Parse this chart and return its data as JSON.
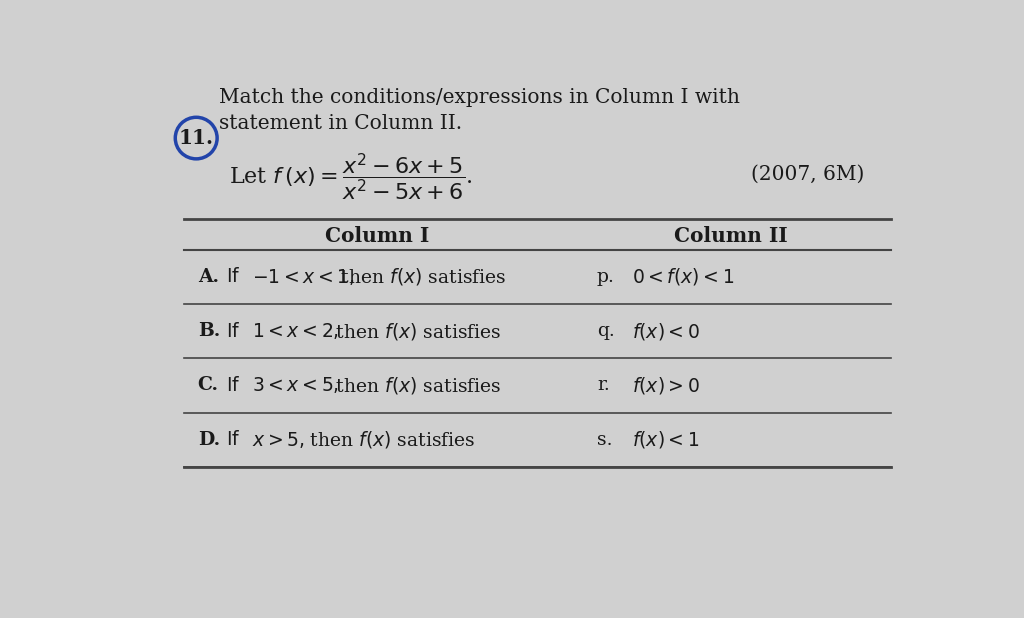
{
  "bg_color": "#d0d0d0",
  "title_line1": "Match the conditions/expressions in Column I with",
  "title_line2": "statement in Column II.",
  "year_mark": "(2007, 6M)",
  "col1_header": "Column I",
  "col2_header": "Column II",
  "rows_col1": [
    "If −1 < x < 1, then f(x) satisfies",
    "If 1 < x < 2, then f(x) satisfies",
    "If 3 < x < 5, then f(x) satisfies",
    "If x > 5, then f(x) satisfies"
  ],
  "rows_letter": [
    "A.",
    "B.",
    "C.",
    "D."
  ],
  "rows_label": [
    "p.",
    "q.",
    "r.",
    "s."
  ],
  "rows_col2": [
    "0 < f(x) < 1",
    "f(x) < 0",
    "f(x) > 0",
    "f(x) < 1"
  ],
  "circle_color": "#2244aa",
  "text_color": "#1a1a1a",
  "line_color": "#444444",
  "font_size_title": 14.5,
  "font_size_body": 13.5,
  "font_size_header": 14.5,
  "font_size_func": 15.0
}
